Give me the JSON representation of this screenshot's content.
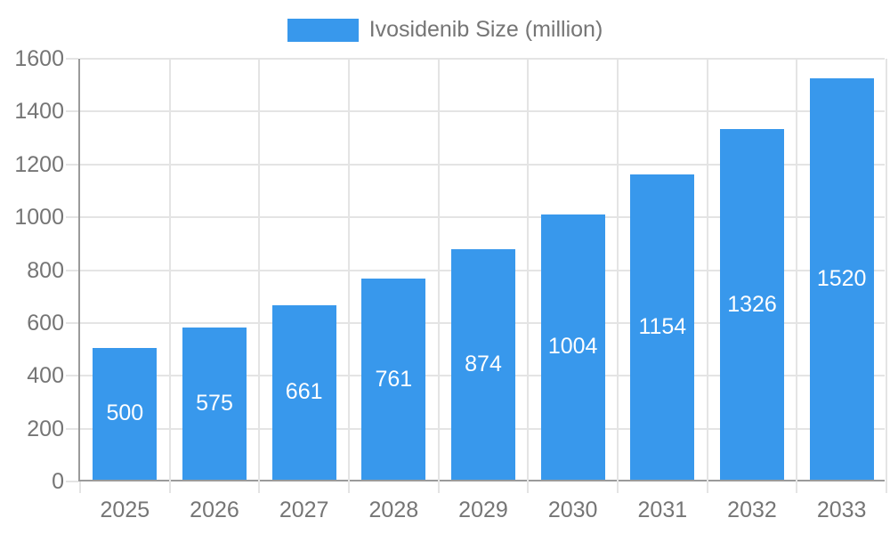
{
  "chart_data": {
    "type": "bar",
    "title": "Ivosidenib Size (million)",
    "legend": {
      "label": "Ivosidenib Size (million)",
      "position": "top"
    },
    "categories": [
      "2025",
      "2026",
      "2027",
      "2028",
      "2029",
      "2030",
      "2031",
      "2032",
      "2033"
    ],
    "values": [
      500,
      575,
      661,
      761,
      874,
      1004,
      1154,
      1326,
      1520
    ],
    "xlabel": "",
    "ylabel": "",
    "ylim": [
      0,
      1600
    ],
    "yticks": [
      0,
      200,
      400,
      600,
      800,
      1000,
      1200,
      1400,
      1600
    ],
    "grid": true,
    "colors": {
      "bar": "#3898EC",
      "value_label": "#FFFFFF",
      "axis_text": "#757575",
      "gridline": "#E4E4E4",
      "axis_line": "#9A9A9A",
      "background": "#FFFFFF"
    }
  }
}
